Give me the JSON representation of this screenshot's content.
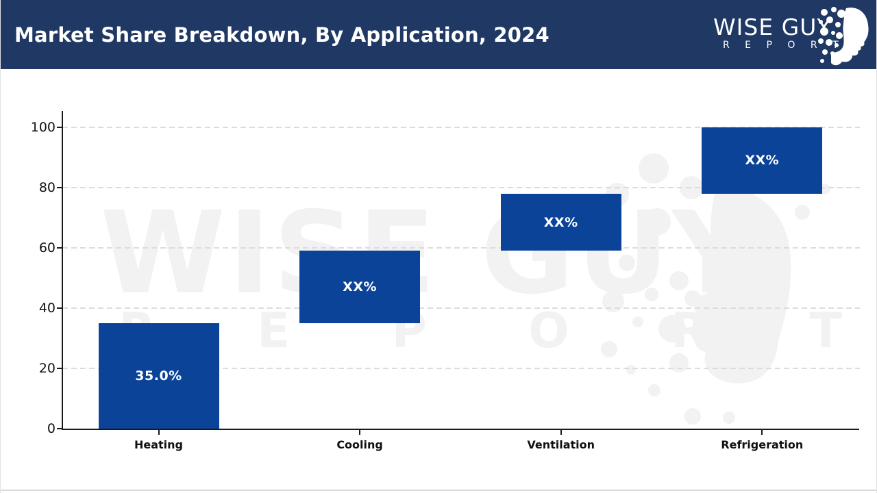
{
  "header": {
    "title": "Market Share Breakdown, By Application, 2024",
    "background_color": "#1f3864",
    "logo": {
      "name": "WISE GUY",
      "subtitle": "R E P O R T S",
      "icon": "dotted-head-profile"
    }
  },
  "watermark": {
    "line1": "WISE GUY",
    "line2": "R E P O R T S",
    "icon": "dotted-head-profile",
    "color": "#f2f2f2"
  },
  "chart_data": {
    "type": "bar",
    "subtype": "waterfall",
    "title": "Market Share Breakdown, By Application, 2024",
    "categories": [
      "Heating",
      "Cooling",
      "Ventilation",
      "Refrigeration"
    ],
    "segments": [
      {
        "category": "Heating",
        "start": 0,
        "end": 35,
        "label": "35.0%"
      },
      {
        "category": "Cooling",
        "start": 35,
        "end": 59,
        "label": "XX%"
      },
      {
        "category": "Ventilation",
        "start": 59,
        "end": 78,
        "label": "XX%"
      },
      {
        "category": "Refrigeration",
        "start": 78,
        "end": 100,
        "label": "XX%"
      }
    ],
    "yticks": [
      0,
      20,
      40,
      60,
      80,
      100
    ],
    "ylim": [
      0,
      105
    ],
    "grid": "horizontal-dashed",
    "legend": "none",
    "bar_color": "#0b4398",
    "bar_label_color": "#ffffff",
    "axis_color": "#1a1a1a",
    "grid_color": "#dcdcdc"
  }
}
